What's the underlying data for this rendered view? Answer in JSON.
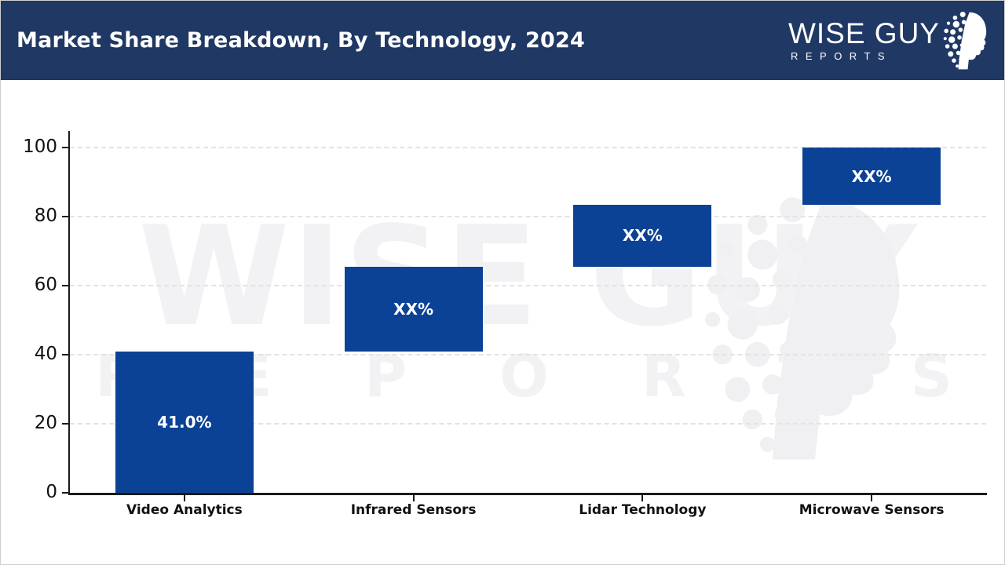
{
  "header": {
    "title": "Market Share Breakdown, By Technology, 2024",
    "logo": {
      "line1": "WISE GUY",
      "line2": "REPORTS"
    }
  },
  "watermark": {
    "line1": "WISE GUY",
    "line2": "REPORTS"
  },
  "colors": {
    "header_bg": "#203864",
    "bar": "#0b4295",
    "bar_label_text": "#ffffff",
    "gridline": "#e3e3e3",
    "axis": "#1a1a1a",
    "watermark": "#f2f2f4"
  },
  "chart_data": {
    "type": "bar",
    "subtype": "waterfall",
    "title": "Market Share Breakdown, By Technology, 2024",
    "categories": [
      "Video Analytics",
      "Infrared Sensors",
      "Lidar Technology",
      "Microwave Sensors"
    ],
    "segments": [
      {
        "category": "Video Analytics",
        "start": 0,
        "end": 41.0,
        "value": 41.0,
        "label": "41.0%"
      },
      {
        "category": "Infrared Sensors",
        "start": 41.0,
        "end": 65.5,
        "value": 24.5,
        "label": "XX%"
      },
      {
        "category": "Lidar Technology",
        "start": 65.5,
        "end": 83.4,
        "value": 17.9,
        "label": "XX%"
      },
      {
        "category": "Microwave Sensors",
        "start": 83.4,
        "end": 100.0,
        "value": 16.6,
        "label": "XX%"
      }
    ],
    "ylim": [
      0,
      100
    ],
    "yticks": [
      0,
      20,
      40,
      60,
      80,
      100
    ],
    "xlabel": "",
    "ylabel": "",
    "grid": "horizontal dashed",
    "legend": "none"
  }
}
